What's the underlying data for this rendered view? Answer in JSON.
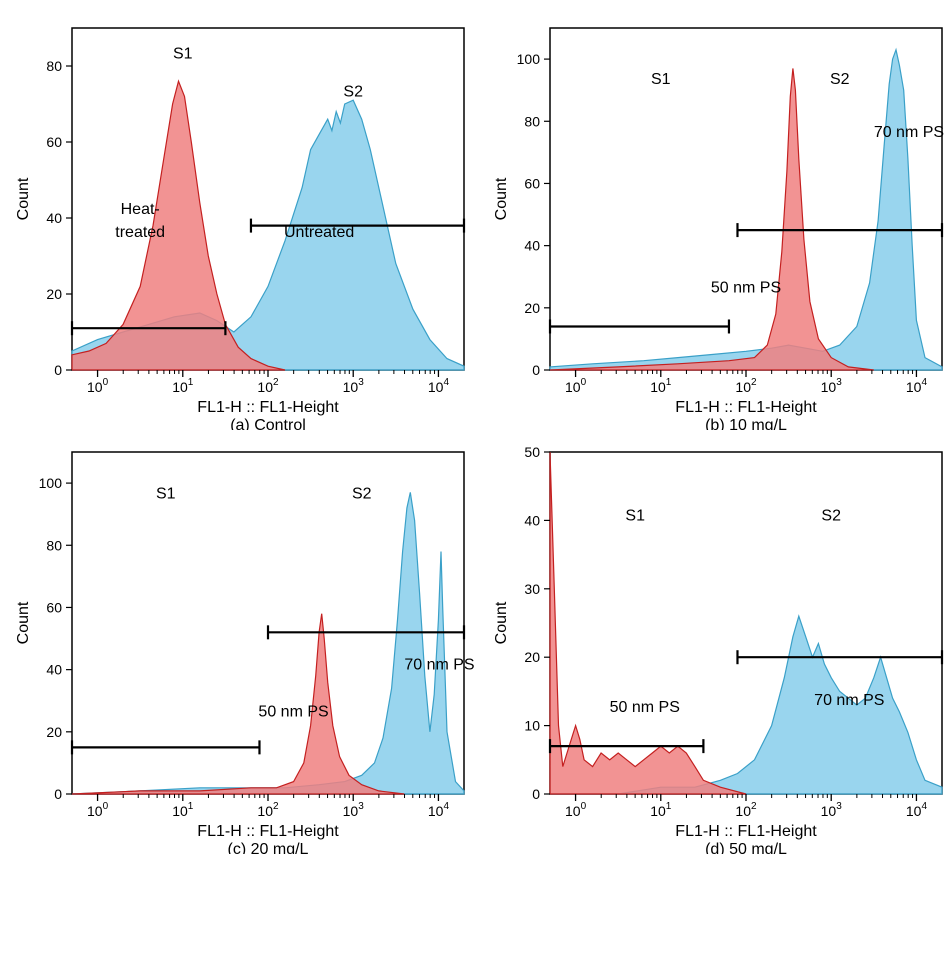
{
  "global": {
    "xlabel": "FL1-H :: FL1-Height",
    "ylabel": "Count",
    "xticks_exp": [
      0,
      1,
      2,
      3,
      4
    ],
    "xlim_exp": [
      -0.3,
      4.3
    ],
    "axis_color": "#000000",
    "series_red": {
      "fill": "#f08080",
      "stroke": "#c42020",
      "opacity": 0.85
    },
    "series_blue": {
      "fill": "#87ceeb",
      "stroke": "#3aa0c8",
      "opacity": 0.85
    },
    "gate_stroke": "#000000",
    "gate_width": 2.2,
    "tick_fontsize": 14,
    "label_fontsize": 16,
    "annot_fontsize": 16
  },
  "panels": [
    {
      "id": "a",
      "caption": "(a) Control",
      "ylim": [
        0,
        90
      ],
      "yticks": [
        0,
        20,
        40,
        60,
        80
      ],
      "annotations": [
        {
          "text": "S1",
          "x_exp": 1.0,
          "y": 82,
          "anchor": "middle"
        },
        {
          "text": "S2",
          "x_exp": 3.0,
          "y": 72,
          "anchor": "middle"
        },
        {
          "text": "Heat-",
          "x_exp": 0.5,
          "y": 41,
          "anchor": "middle",
          "color": "#000"
        },
        {
          "text": "treated",
          "x_exp": 0.5,
          "y": 35,
          "anchor": "middle",
          "color": "#000"
        },
        {
          "text": "Untreated",
          "x_exp": 2.6,
          "y": 35,
          "anchor": "middle",
          "color": "#000"
        }
      ],
      "gates": [
        {
          "x1_exp": -0.3,
          "x2_exp": 1.5,
          "y": 11
        },
        {
          "x1_exp": 1.8,
          "x2_exp": 4.3,
          "y": 38
        }
      ],
      "series": [
        {
          "color": "blue",
          "points": [
            [
              -0.3,
              5
            ],
            [
              0.0,
              8
            ],
            [
              0.3,
              10
            ],
            [
              0.6,
              12
            ],
            [
              0.9,
              14
            ],
            [
              1.2,
              15
            ],
            [
              1.4,
              13
            ],
            [
              1.6,
              10
            ],
            [
              1.8,
              14
            ],
            [
              2.0,
              22
            ],
            [
              2.2,
              34
            ],
            [
              2.4,
              48
            ],
            [
              2.5,
              58
            ],
            [
              2.6,
              62
            ],
            [
              2.7,
              66
            ],
            [
              2.75,
              63
            ],
            [
              2.8,
              68
            ],
            [
              2.85,
              65
            ],
            [
              2.9,
              70
            ],
            [
              3.0,
              71
            ],
            [
              3.1,
              66
            ],
            [
              3.2,
              58
            ],
            [
              3.3,
              48
            ],
            [
              3.4,
              38
            ],
            [
              3.5,
              28
            ],
            [
              3.7,
              16
            ],
            [
              3.9,
              8
            ],
            [
              4.1,
              3
            ],
            [
              4.3,
              1
            ]
          ]
        },
        {
          "color": "red",
          "points": [
            [
              -0.3,
              4
            ],
            [
              -0.1,
              5
            ],
            [
              0.1,
              7
            ],
            [
              0.3,
              12
            ],
            [
              0.5,
              22
            ],
            [
              0.65,
              38
            ],
            [
              0.78,
              56
            ],
            [
              0.88,
              70
            ],
            [
              0.95,
              76
            ],
            [
              1.02,
              72
            ],
            [
              1.1,
              60
            ],
            [
              1.2,
              44
            ],
            [
              1.3,
              30
            ],
            [
              1.4,
              20
            ],
            [
              1.5,
              12
            ],
            [
              1.65,
              6
            ],
            [
              1.8,
              3
            ],
            [
              2.0,
              1
            ],
            [
              2.2,
              0
            ]
          ]
        }
      ]
    },
    {
      "id": "b",
      "caption": "(b) 10 mg/L",
      "ylim": [
        0,
        110
      ],
      "yticks": [
        0,
        20,
        40,
        60,
        80,
        100
      ],
      "annotations": [
        {
          "text": "S1",
          "x_exp": 1.0,
          "y": 92,
          "anchor": "middle"
        },
        {
          "text": "S2",
          "x_exp": 3.1,
          "y": 92,
          "anchor": "middle"
        },
        {
          "text": "50 nm PS",
          "x_exp": 2.0,
          "y": 25,
          "anchor": "middle"
        },
        {
          "text": "70 nm PS",
          "x_exp": 3.5,
          "y": 75,
          "anchor": "start"
        }
      ],
      "gates": [
        {
          "x1_exp": -0.3,
          "x2_exp": 1.8,
          "y": 14
        },
        {
          "x1_exp": 1.9,
          "x2_exp": 4.3,
          "y": 45
        }
      ],
      "series": [
        {
          "color": "blue",
          "points": [
            [
              -0.3,
              1
            ],
            [
              0.2,
              2
            ],
            [
              0.8,
              3
            ],
            [
              1.2,
              4
            ],
            [
              1.6,
              5
            ],
            [
              2.0,
              6
            ],
            [
              2.3,
              7
            ],
            [
              2.5,
              8
            ],
            [
              2.7,
              7
            ],
            [
              2.9,
              6
            ],
            [
              3.1,
              8
            ],
            [
              3.3,
              14
            ],
            [
              3.45,
              28
            ],
            [
              3.55,
              48
            ],
            [
              3.62,
              72
            ],
            [
              3.68,
              92
            ],
            [
              3.72,
              100
            ],
            [
              3.76,
              103
            ],
            [
              3.8,
              98
            ],
            [
              3.85,
              90
            ],
            [
              3.9,
              68
            ],
            [
              3.95,
              40
            ],
            [
              4.0,
              16
            ],
            [
              4.1,
              4
            ],
            [
              4.3,
              1
            ]
          ]
        },
        {
          "color": "red",
          "points": [
            [
              -0.3,
              0
            ],
            [
              0.5,
              1
            ],
            [
              1.2,
              2
            ],
            [
              1.8,
              3
            ],
            [
              2.1,
              4
            ],
            [
              2.25,
              8
            ],
            [
              2.35,
              18
            ],
            [
              2.42,
              38
            ],
            [
              2.48,
              64
            ],
            [
              2.52,
              88
            ],
            [
              2.55,
              97
            ],
            [
              2.58,
              90
            ],
            [
              2.62,
              68
            ],
            [
              2.68,
              42
            ],
            [
              2.75,
              22
            ],
            [
              2.85,
              10
            ],
            [
              3.0,
              4
            ],
            [
              3.2,
              1
            ],
            [
              3.5,
              0
            ]
          ]
        }
      ]
    },
    {
      "id": "c",
      "caption": "(c) 20 mg/L",
      "ylim": [
        0,
        110
      ],
      "yticks": [
        0,
        20,
        40,
        60,
        80,
        100
      ],
      "annotations": [
        {
          "text": "S1",
          "x_exp": 0.8,
          "y": 95,
          "anchor": "middle"
        },
        {
          "text": "S2",
          "x_exp": 3.1,
          "y": 95,
          "anchor": "middle"
        },
        {
          "text": "50 nm PS",
          "x_exp": 2.3,
          "y": 25,
          "anchor": "middle"
        },
        {
          "text": "70 nm PS",
          "x_exp": 3.6,
          "y": 40,
          "anchor": "start"
        }
      ],
      "gates": [
        {
          "x1_exp": -0.3,
          "x2_exp": 1.9,
          "y": 15
        },
        {
          "x1_exp": 2.0,
          "x2_exp": 4.3,
          "y": 52
        }
      ],
      "series": [
        {
          "color": "blue",
          "points": [
            [
              -0.3,
              0
            ],
            [
              0.5,
              1
            ],
            [
              1.2,
              2
            ],
            [
              1.8,
              2
            ],
            [
              2.2,
              2
            ],
            [
              2.6,
              3
            ],
            [
              2.9,
              4
            ],
            [
              3.1,
              6
            ],
            [
              3.25,
              10
            ],
            [
              3.35,
              18
            ],
            [
              3.45,
              34
            ],
            [
              3.52,
              56
            ],
            [
              3.58,
              78
            ],
            [
              3.63,
              92
            ],
            [
              3.67,
              97
            ],
            [
              3.72,
              88
            ],
            [
              3.78,
              64
            ],
            [
              3.84,
              38
            ],
            [
              3.9,
              20
            ],
            [
              3.95,
              32
            ],
            [
              4.0,
              56
            ],
            [
              4.03,
              78
            ],
            [
              4.05,
              60
            ],
            [
              4.1,
              20
            ],
            [
              4.2,
              4
            ],
            [
              4.3,
              1
            ]
          ]
        },
        {
          "color": "red",
          "points": [
            [
              -0.3,
              0
            ],
            [
              0.5,
              1
            ],
            [
              1.2,
              1
            ],
            [
              1.8,
              2
            ],
            [
              2.1,
              2
            ],
            [
              2.3,
              4
            ],
            [
              2.42,
              10
            ],
            [
              2.5,
              22
            ],
            [
              2.56,
              38
            ],
            [
              2.6,
              52
            ],
            [
              2.63,
              58
            ],
            [
              2.66,
              50
            ],
            [
              2.7,
              36
            ],
            [
              2.76,
              22
            ],
            [
              2.84,
              12
            ],
            [
              2.95,
              6
            ],
            [
              3.1,
              3
            ],
            [
              3.3,
              1
            ],
            [
              3.6,
              0
            ]
          ]
        }
      ]
    },
    {
      "id": "d",
      "caption": "(d) 50 mg/L",
      "ylim": [
        0,
        50
      ],
      "yticks": [
        0,
        10,
        20,
        30,
        40,
        50
      ],
      "annotations": [
        {
          "text": "S1",
          "x_exp": 0.7,
          "y": 40,
          "anchor": "middle"
        },
        {
          "text": "S2",
          "x_exp": 3.0,
          "y": 40,
          "anchor": "middle"
        },
        {
          "text": "50 nm PS",
          "x_exp": 0.4,
          "y": 12,
          "anchor": "start"
        },
        {
          "text": "70 nm PS",
          "x_exp": 2.8,
          "y": 13,
          "anchor": "start"
        }
      ],
      "gates": [
        {
          "x1_exp": -0.3,
          "x2_exp": 1.5,
          "y": 7
        },
        {
          "x1_exp": 1.9,
          "x2_exp": 4.3,
          "y": 20
        }
      ],
      "series": [
        {
          "color": "blue",
          "points": [
            [
              -0.3,
              0
            ],
            [
              0.5,
              0
            ],
            [
              1.0,
              1
            ],
            [
              1.4,
              1
            ],
            [
              1.7,
              2
            ],
            [
              1.9,
              3
            ],
            [
              2.1,
              5
            ],
            [
              2.3,
              10
            ],
            [
              2.45,
              17
            ],
            [
              2.55,
              23
            ],
            [
              2.62,
              26
            ],
            [
              2.7,
              23
            ],
            [
              2.78,
              20
            ],
            [
              2.85,
              22
            ],
            [
              2.92,
              19
            ],
            [
              3.0,
              17
            ],
            [
              3.1,
              15
            ],
            [
              3.2,
              14
            ],
            [
              3.3,
              13
            ],
            [
              3.4,
              14
            ],
            [
              3.5,
              17
            ],
            [
              3.58,
              20
            ],
            [
              3.65,
              17
            ],
            [
              3.72,
              14
            ],
            [
              3.8,
              12
            ],
            [
              3.9,
              9
            ],
            [
              4.0,
              5
            ],
            [
              4.1,
              2
            ],
            [
              4.3,
              1
            ]
          ]
        },
        {
          "color": "red",
          "points": [
            [
              -0.3,
              50
            ],
            [
              -0.25,
              30
            ],
            [
              -0.2,
              10
            ],
            [
              -0.15,
              4
            ],
            [
              -0.1,
              6
            ],
            [
              -0.05,
              8
            ],
            [
              0.0,
              10
            ],
            [
              0.05,
              8
            ],
            [
              0.1,
              5
            ],
            [
              0.2,
              4
            ],
            [
              0.3,
              6
            ],
            [
              0.4,
              5
            ],
            [
              0.5,
              6
            ],
            [
              0.6,
              5
            ],
            [
              0.7,
              4
            ],
            [
              0.8,
              5
            ],
            [
              0.9,
              6
            ],
            [
              1.0,
              7
            ],
            [
              1.1,
              6
            ],
            [
              1.2,
              7
            ],
            [
              1.3,
              6
            ],
            [
              1.4,
              4
            ],
            [
              1.5,
              2
            ],
            [
              1.7,
              1
            ],
            [
              2.0,
              0
            ]
          ]
        }
      ]
    }
  ]
}
